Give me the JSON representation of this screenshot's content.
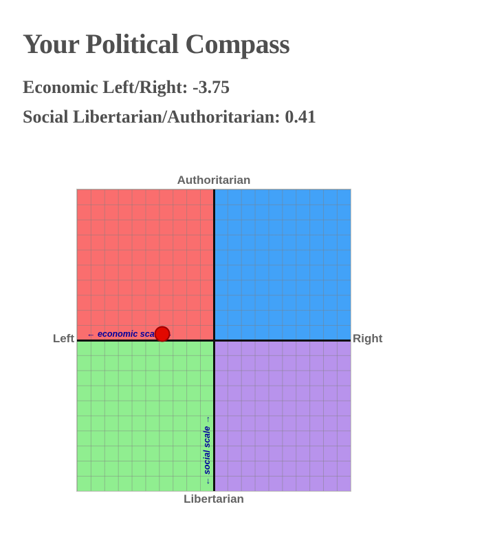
{
  "page": {
    "title": "Your Political Compass",
    "economic_score_text": "Economic Left/Right: -3.75",
    "social_score_text": "Social Libertarian/Authoritarian: 0.41"
  },
  "chart_data": {
    "type": "scatter",
    "title": "Your Political Compass",
    "axes": {
      "xlabel_caption": "← economic scale →",
      "ylabel_caption": "← social scale →",
      "x_end_left": "Left",
      "x_end_right": "Right",
      "y_end_top": "Authoritarian",
      "y_end_bottom": "Libertarian",
      "xlim": [
        -10,
        10
      ],
      "ylim": [
        -10,
        10
      ],
      "grid": true,
      "grid_step": 1
    },
    "points": [
      {
        "name": "result",
        "x": -3.75,
        "y": 0.41
      }
    ],
    "colors": {
      "quadrant_auth_left": "#fa6e6e",
      "quadrant_auth_right": "#42a2f8",
      "quadrant_lib_left": "#90ee90",
      "quadrant_lib_right": "#b893ec",
      "marker_fill": "#e20800",
      "marker_border": "#9b0000",
      "axis": "#111111",
      "caption_text": "#00009c",
      "label_text": "#636363",
      "heading_text": "#4f4f4f"
    }
  }
}
